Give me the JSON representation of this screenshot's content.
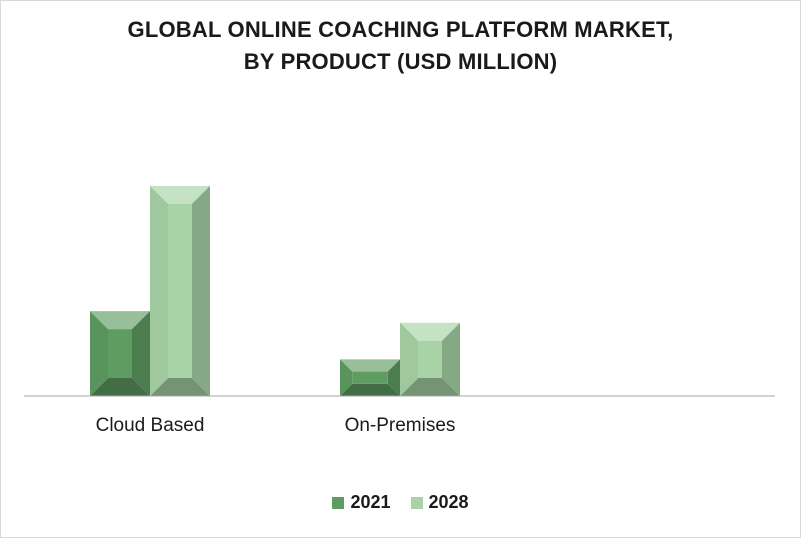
{
  "chart_data": {
    "type": "bar",
    "title_line1": "GLOBAL ONLINE COACHING PLATFORM MARKET,",
    "title_line2": "BY PRODUCT (USD MILLION)",
    "categories": [
      "Cloud Based",
      "On-Premises"
    ],
    "series": [
      {
        "name": "2021",
        "values": [
          88,
          38
        ],
        "color": "#5f9c62"
      },
      {
        "name": "2028",
        "values": [
          218,
          76
        ],
        "color": "#a8d3a6"
      }
    ],
    "ylim": [
      0,
      250
    ],
    "grid": false,
    "legend_position": "bottom"
  }
}
